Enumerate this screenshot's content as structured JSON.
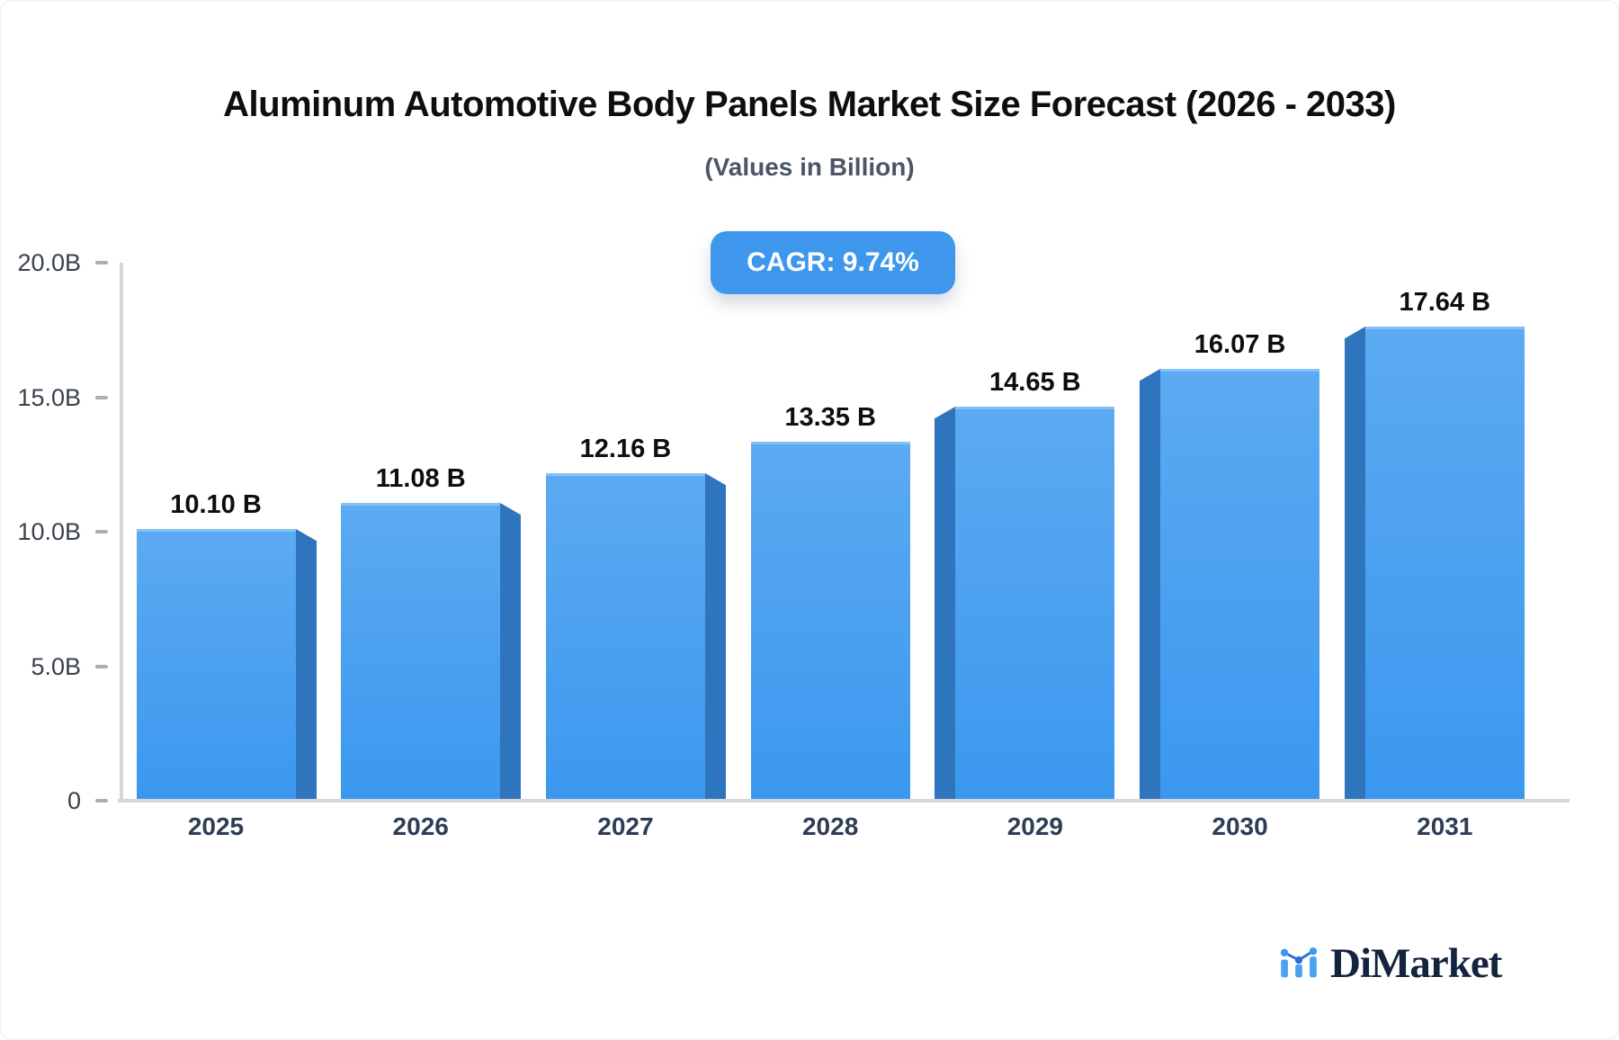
{
  "header": {
    "title": "Aluminum Automotive Body Panels Market Size Forecast (2026 - 2033)",
    "subtitle": "(Values in Billion)"
  },
  "badge": {
    "label": "CAGR: 9.74%"
  },
  "chart_data": {
    "type": "bar",
    "title": "Aluminum Automotive Body Panels Market Size Forecast (2026 - 2033)",
    "subtitle": "(Values in Billion)",
    "categories": [
      "2025",
      "2026",
      "2027",
      "2028",
      "2029",
      "2030",
      "2031"
    ],
    "values": [
      10.1,
      11.08,
      12.16,
      13.35,
      14.65,
      16.07,
      17.64
    ],
    "value_labels": [
      "10.10 B",
      "11.08 B",
      "12.16 B",
      "13.35 B",
      "14.65 B",
      "16.07 B",
      "17.64 B"
    ],
    "xlabel": "",
    "ylabel": "",
    "ylim": [
      0,
      20
    ],
    "yticks": [
      {
        "label": "20.0B",
        "value": 20.0
      },
      {
        "label": "15.0B",
        "value": 15.0
      },
      {
        "label": "10.0B",
        "value": 10.0
      },
      {
        "label": "5.0B",
        "value": 5.0
      },
      {
        "label": "0",
        "value": 0
      }
    ],
    "grid": false,
    "legend": false,
    "bar_style": "3d-extruded",
    "annotation": "CAGR: 9.74%"
  },
  "logo": {
    "brand": "DiMarket",
    "icon": "bar-line-chart-icon"
  },
  "colors": {
    "background": "#FFFFFF",
    "bar_face_top": "#5CAAF1",
    "bar_face_bottom": "#3B98EF",
    "bar_top_highlight": "#85C1F6",
    "bar_side": "#2E75BE",
    "badge_bg": "#3E97EC",
    "badge_text": "#FFFFFF",
    "axis_line": "#D5D7DA",
    "tick": "#A9AEB7",
    "ytick_label": "#3A424C",
    "xtick_label": "#2E3D55",
    "value_label": "#0C0E10",
    "title": "#0D0E10",
    "subtitle": "#4A5568",
    "logo_text": "#15243E",
    "logo_icon_light": "#4AA2F3",
    "logo_icon_dot": "#3F98F0",
    "logo_icon_dark": "#2D6FD6"
  }
}
